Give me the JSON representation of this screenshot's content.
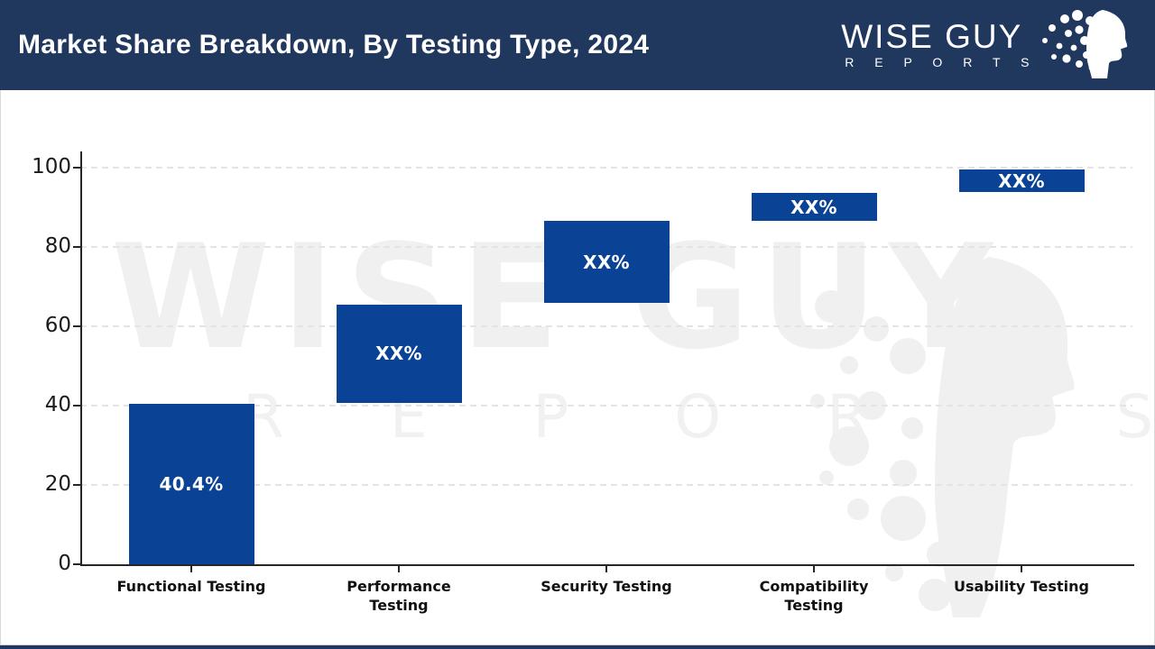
{
  "header": {
    "title": "Market Share Breakdown, By Testing Type, 2024",
    "background_color": "#20375E",
    "logo": {
      "line1": "WISE GUY",
      "line2": "R E P O R T S"
    }
  },
  "watermark": {
    "line1": "WISE GUY",
    "line2": "R E P O R T S"
  },
  "footer": {
    "bar_color": "#20375E"
  },
  "chart_data": {
    "type": "bar",
    "subtype": "waterfall",
    "title": "Market Share Breakdown, By Testing Type, 2024",
    "categories": [
      "Functional Testing",
      "Performance Testing",
      "Security Testing",
      "Compatibility Testing",
      "Usability Testing"
    ],
    "category_label_lines": [
      [
        "Functional Testing"
      ],
      [
        "Performance",
        "Testing"
      ],
      [
        "Security Testing"
      ],
      [
        "Compatibility",
        "Testing"
      ],
      [
        "Usability Testing"
      ]
    ],
    "segments": [
      {
        "category": "Functional Testing",
        "start": 0,
        "end": 40.4,
        "label": "40.4%"
      },
      {
        "category": "Performance Testing",
        "start": 40.7,
        "end": 65.5,
        "label": "XX%"
      },
      {
        "category": "Security Testing",
        "start": 65.8,
        "end": 86.6,
        "label": "XX%"
      },
      {
        "category": "Compatibility Testing",
        "start": 86.6,
        "end": 93.6,
        "label": "XX%"
      },
      {
        "category": "Usability Testing",
        "start": 93.8,
        "end": 99.5,
        "label": "XX%"
      }
    ],
    "xlabel": "",
    "ylabel": "",
    "yticks": [
      0,
      20,
      40,
      60,
      80,
      100
    ],
    "ylim": [
      0,
      104
    ],
    "grid": "horizontal-dashed",
    "legend": "none",
    "bar_color": "#0A4296",
    "bar_label_color": "#FFFFFF",
    "axis_color": "#262626"
  }
}
